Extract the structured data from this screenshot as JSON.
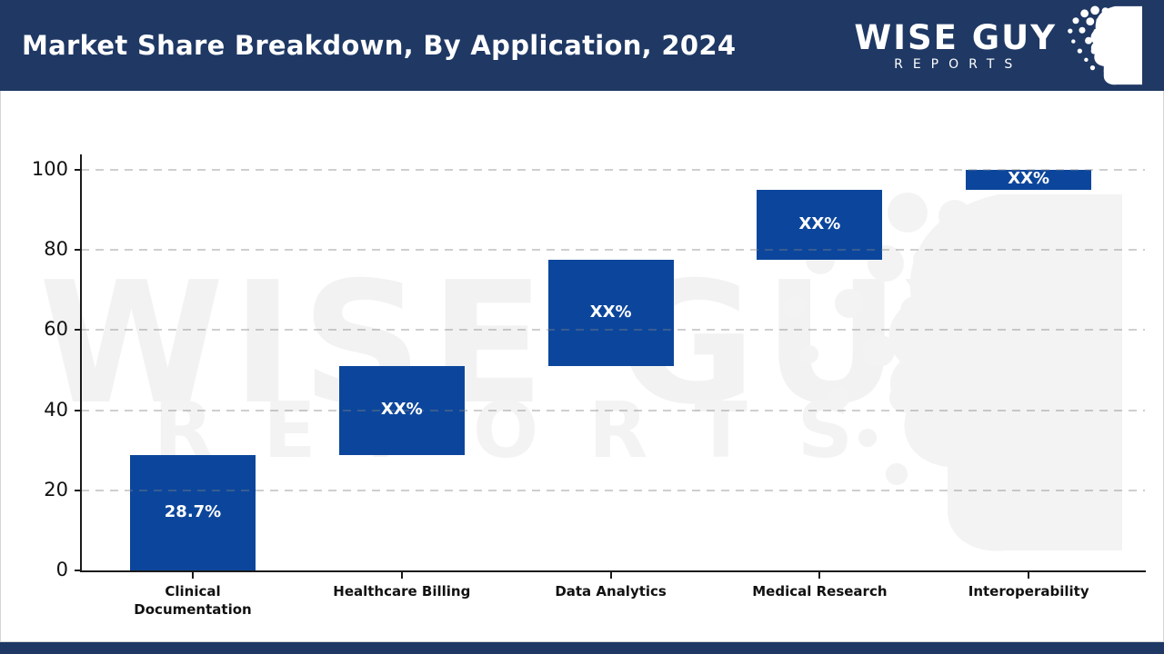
{
  "header": {
    "title": "Market Share Breakdown, By Application, 2024",
    "bg_color": "#1f3864",
    "logo": {
      "line1": "WISE GUY",
      "line2": "REPORTS"
    }
  },
  "watermark": {
    "line1": "WISE GUY",
    "line2": "REPORTS"
  },
  "footer": {
    "bg_color": "#1f3864"
  },
  "chart_data": {
    "type": "bar",
    "subtype": "waterfall",
    "title": "Market Share Breakdown, By Application, 2024",
    "categories": [
      "Clinical Documentation",
      "Healthcare Billing",
      "Data Analytics",
      "Medical Research",
      "Interoperability"
    ],
    "segments": [
      {
        "category": "Clinical Documentation",
        "start": 0,
        "end": 28.7,
        "label": "28.7%"
      },
      {
        "category": "Healthcare Billing",
        "start": 28.7,
        "end": 51.0,
        "label": "XX%"
      },
      {
        "category": "Data Analytics",
        "start": 51.0,
        "end": 77.5,
        "label": "XX%"
      },
      {
        "category": "Medical Research",
        "start": 77.5,
        "end": 95.0,
        "label": "XX%"
      },
      {
        "category": "Interoperability",
        "start": 95.0,
        "end": 100.0,
        "label": "XX%"
      }
    ],
    "xlabel": "",
    "ylabel": "",
    "ylim": [
      0,
      100
    ],
    "yticks": [
      0,
      20,
      40,
      60,
      80,
      100
    ],
    "grid": "horizontal-dashed",
    "legend": "none",
    "bar_color": "#0c469c",
    "bar_label_color": "#ffffff",
    "axis_color": "#1a1a1a"
  }
}
